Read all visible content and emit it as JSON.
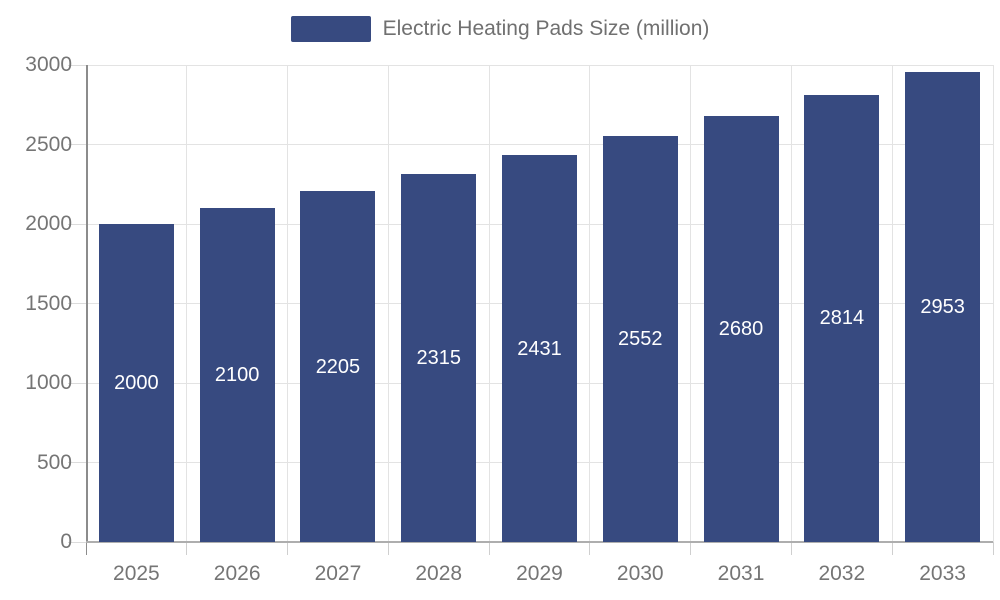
{
  "chart_data": {
    "type": "bar",
    "title": "Electric Heating Pads Size (million)",
    "categories": [
      "2025",
      "2026",
      "2027",
      "2028",
      "2029",
      "2030",
      "2031",
      "2032",
      "2033"
    ],
    "values": [
      2000,
      2100,
      2205,
      2315,
      2431,
      2552,
      2680,
      2814,
      2953
    ],
    "series": [
      {
        "name": "Electric Heating Pads Size (million)",
        "values": [
          2000,
          2100,
          2205,
          2315,
          2431,
          2552,
          2680,
          2814,
          2953
        ]
      }
    ],
    "xlabel": "",
    "ylabel": "",
    "ylim": [
      0,
      3000
    ],
    "yticks": [
      0,
      500,
      1000,
      1500,
      2000,
      2500,
      3000
    ],
    "grid": true,
    "legend_position": "top",
    "value_labels": "inside-center",
    "style": {
      "bar_color": "#374a80",
      "grid_color": "#e3e3e3",
      "axis_line_color_y": "#8c8c8c",
      "axis_line_color_x": "#aeaeae",
      "tick_color": "#cfcfcf",
      "axis_text_color": "#757575",
      "legend_text_color": "#707070",
      "value_label_color": "#ffffff",
      "background": "#ffffff"
    }
  }
}
